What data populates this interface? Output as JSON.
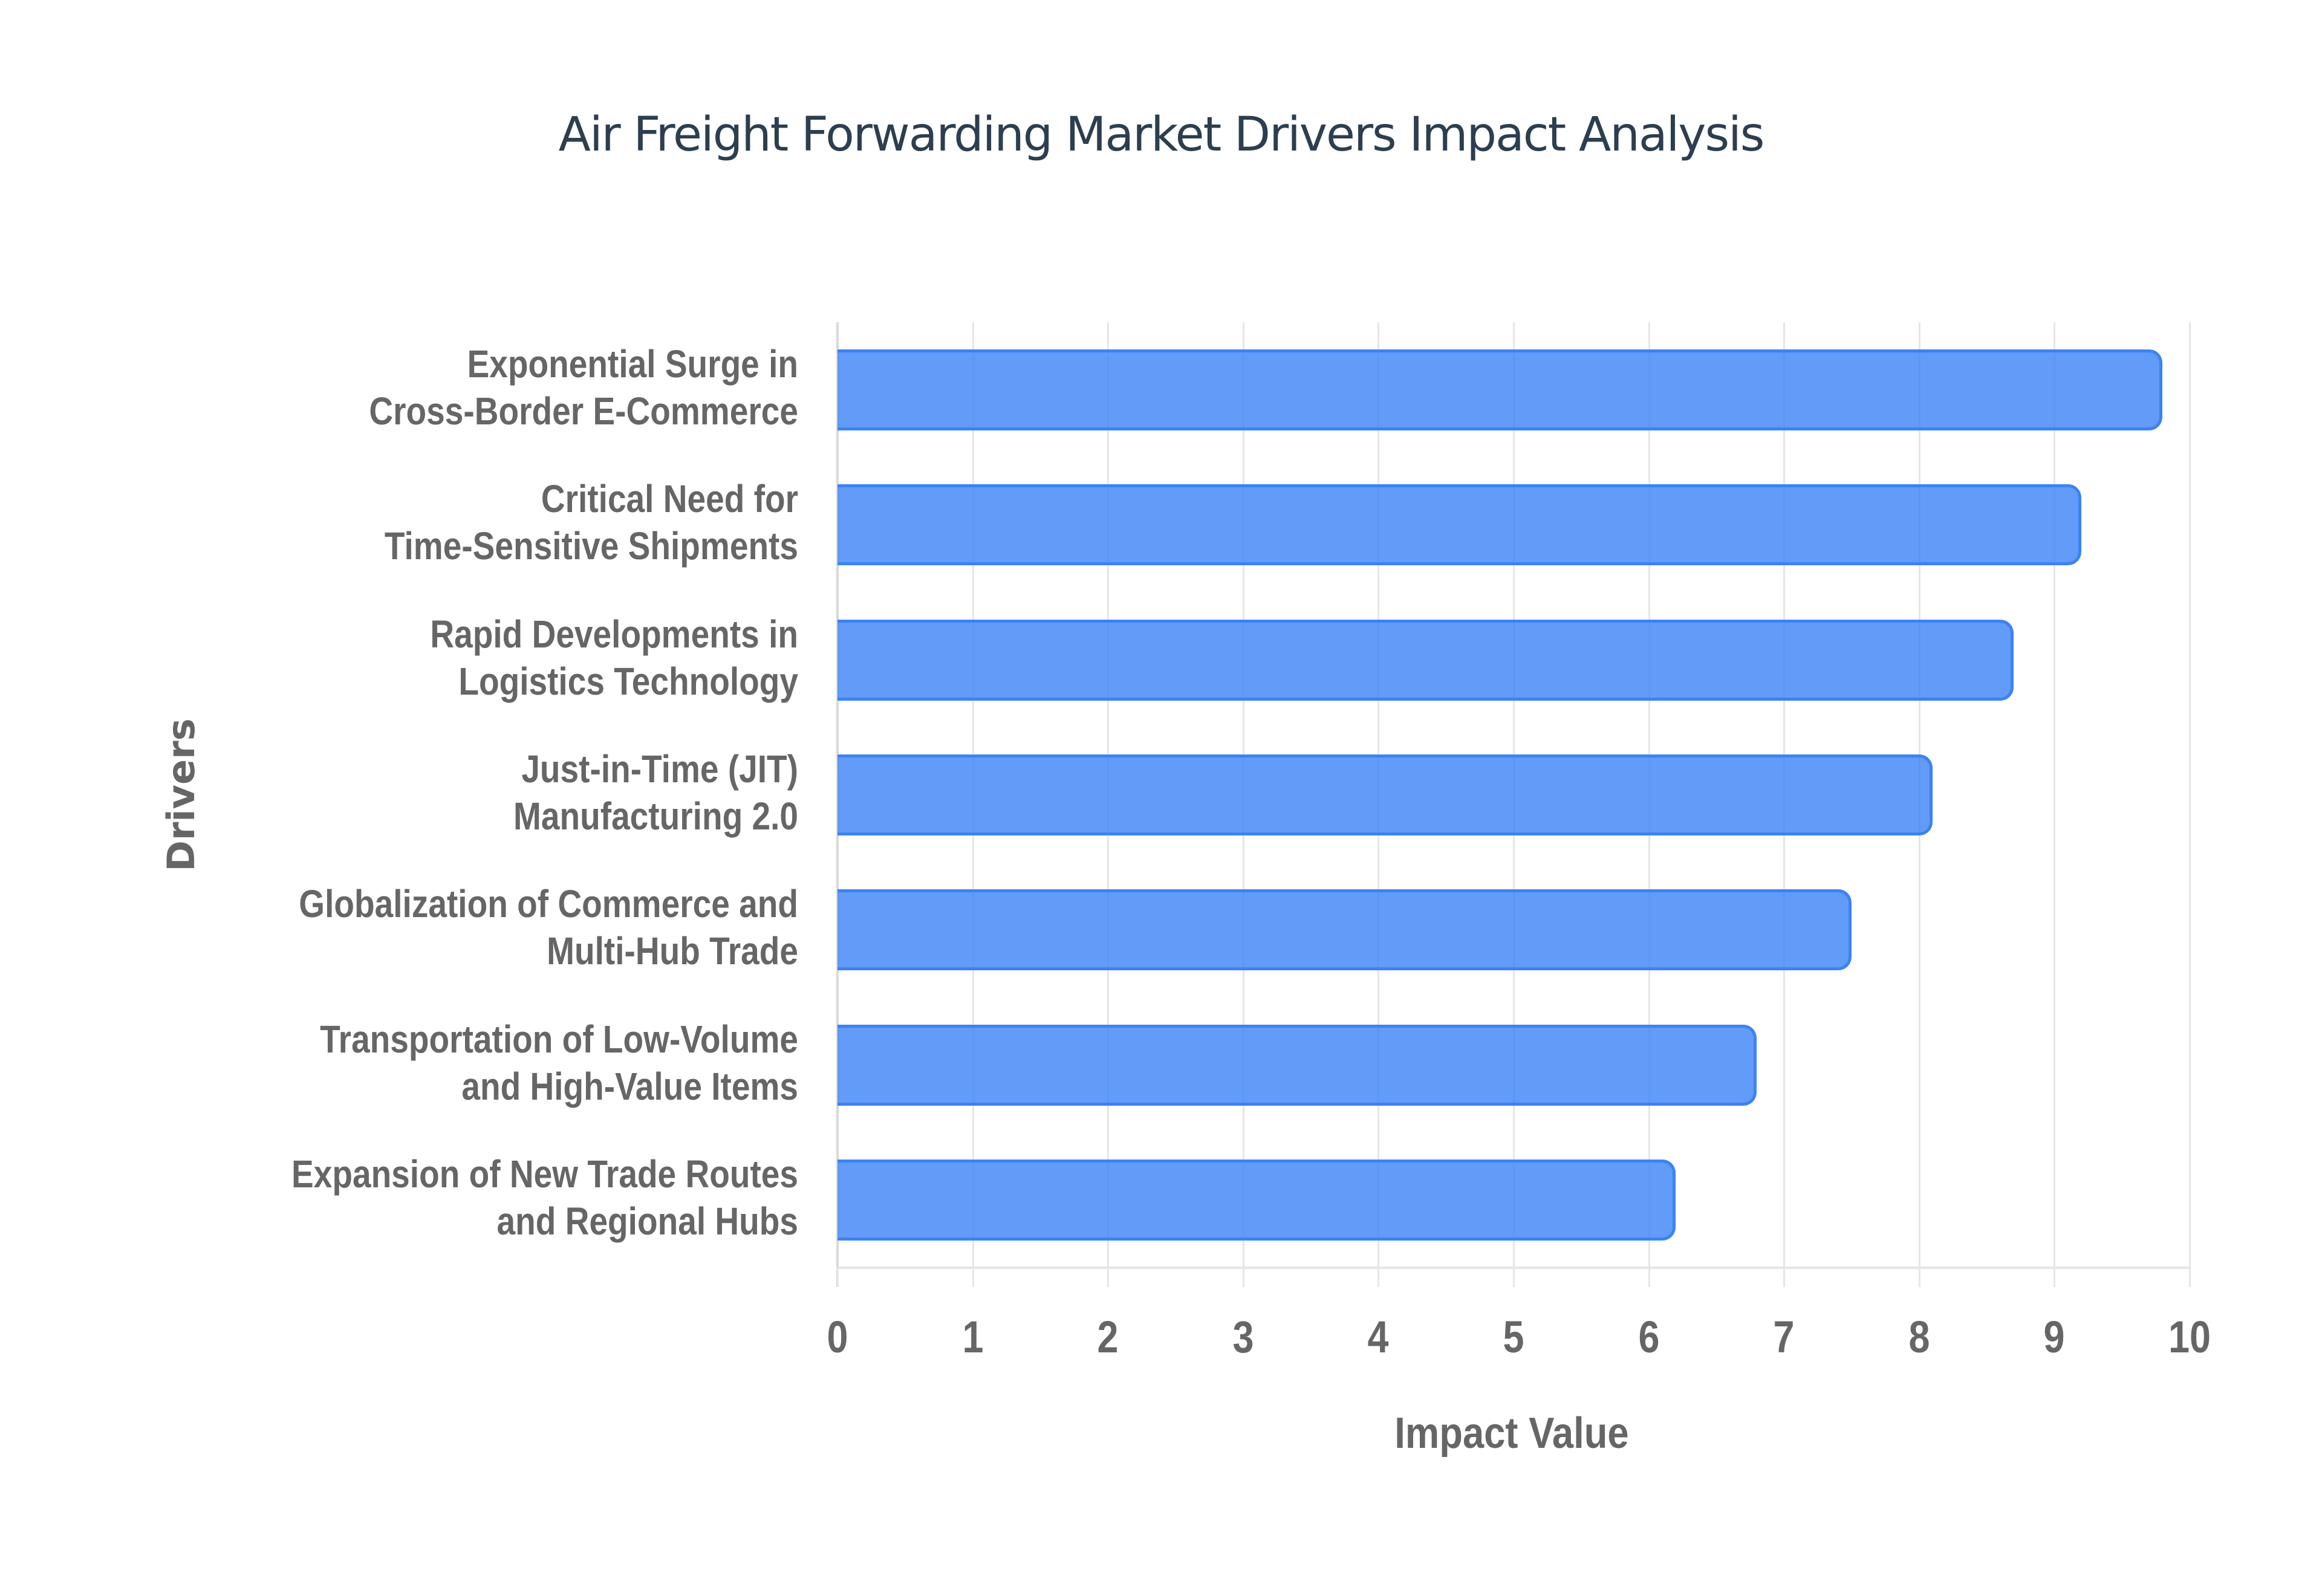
{
  "chart_data": {
    "type": "bar",
    "orientation": "horizontal",
    "title": "Air Freight Forwarding Market Drivers Impact Analysis",
    "xlabel": "Impact Value",
    "ylabel": "Drivers",
    "xlim": [
      0,
      10
    ],
    "xticks": [
      "0",
      "1",
      "2",
      "3",
      "4",
      "5",
      "6",
      "7",
      "8",
      "9",
      "10"
    ],
    "grid": true,
    "legend": null,
    "categories": [
      "Exponential Surge in Cross-Border E-Commerce",
      "Critical Need for Time-Sensitive Shipments",
      "Rapid Developments in Logistics Technology",
      "Just-in-Time (JIT) Manufacturing 2.0",
      "Globalization of Commerce and Multi-Hub Trade",
      "Transportation of Low-Volume and High-Value Items",
      "Expansion of New Trade Routes and Regional Hubs"
    ],
    "values": [
      9.8,
      9.2,
      8.7,
      8.1,
      7.5,
      6.8,
      6.2
    ],
    "colors": {
      "bar_fill": "#6199f5",
      "bar_border": "#3b82f6",
      "title": "#2c3e50",
      "axis_text": "#666666",
      "grid": "#e6e6e6"
    }
  },
  "labels": [
    {
      "line1": "Exponential Surge in",
      "line2": "Cross-Border E-Commerce"
    },
    {
      "line1": "Critical Need for",
      "line2": "Time-Sensitive Shipments"
    },
    {
      "line1": "Rapid Developments in",
      "line2": "Logistics Technology"
    },
    {
      "line1": "Just-in-Time (JIT)",
      "line2": "Manufacturing 2.0"
    },
    {
      "line1": "Globalization of Commerce and",
      "line2": "Multi-Hub Trade"
    },
    {
      "line1": "Transportation of Low-Volume",
      "line2": "and High-Value Items"
    },
    {
      "line1": "Expansion of New Trade Routes",
      "line2": "and Regional Hubs"
    }
  ]
}
